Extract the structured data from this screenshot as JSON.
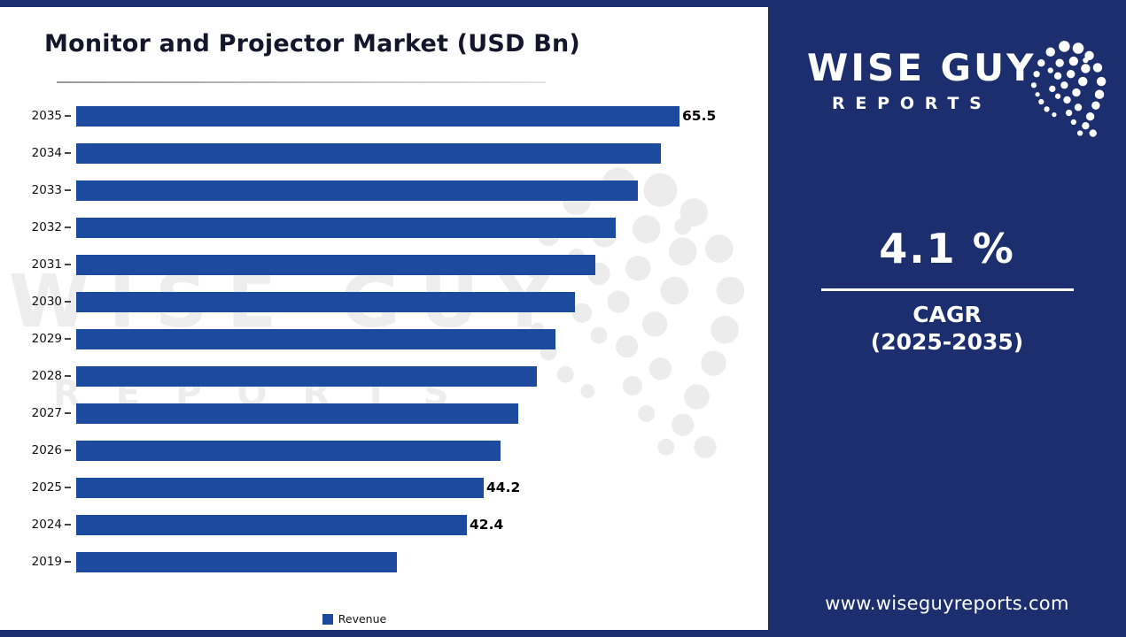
{
  "title": "Monitor and Projector Market (USD Bn)",
  "legend": {
    "revenue_label": "Revenue"
  },
  "watermark": {
    "line1": "WISE GUY",
    "line2": "REPORTS"
  },
  "chart_data": {
    "type": "bar",
    "orientation": "horizontal",
    "title": "Monitor and Projector Market (USD Bn)",
    "series_name": "Revenue",
    "categories": [
      "2035",
      "2034",
      "2033",
      "2032",
      "2031",
      "2030",
      "2029",
      "2028",
      "2027",
      "2026",
      "2025",
      "2024",
      "2019"
    ],
    "values": [
      65.5,
      63.5,
      61.0,
      58.6,
      56.3,
      54.1,
      52.0,
      50.0,
      48.0,
      46.1,
      44.2,
      42.4,
      34.8
    ],
    "data_labels": [
      "65.5",
      "",
      "",
      "",
      "",
      "",
      "",
      "",
      "",
      "",
      "44.2",
      "42.4",
      ""
    ],
    "xlim": [
      0,
      70
    ],
    "grid": false,
    "legend_position": "bottom",
    "bar_color": "#1b4a9e"
  },
  "sidebar": {
    "brand": {
      "line1": "WISE GUY",
      "line2": "REPORTS"
    },
    "cagr_value": "4.1 %",
    "cagr_label_line1": "CAGR",
    "cagr_label_line2": "(2025-2035)",
    "website": "www.wiseguyreports.com",
    "bg_color": "#1c2e6e"
  }
}
